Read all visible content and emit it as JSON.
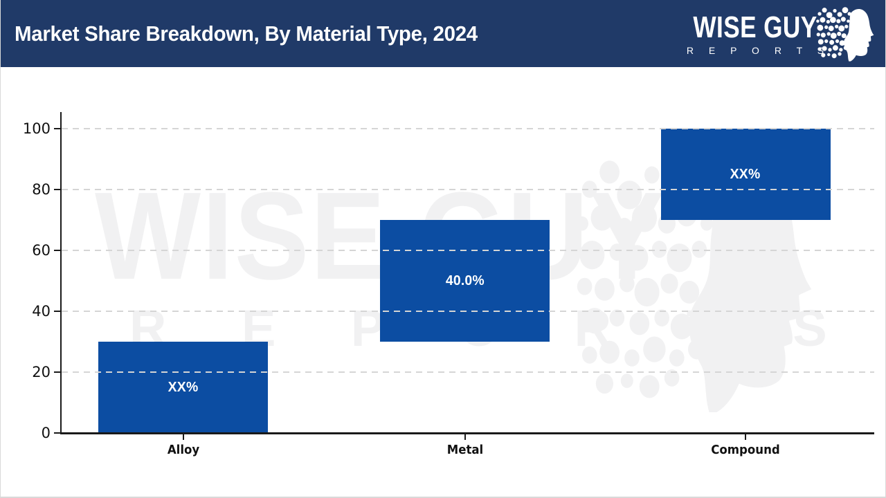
{
  "header": {
    "title": "Market Share Breakdown, By Material Type, 2024"
  },
  "logo": {
    "line1": "WISE GUY",
    "line2": "R E P O R T S"
  },
  "watermark": {
    "line1": "WISE GUY",
    "line2": "R E P O R T S"
  },
  "colors": {
    "header_bg": "#203A68",
    "bar": "#0C4DA2",
    "bar_label": "#FFFFFF",
    "grid": "#D5D5D5",
    "axis": "#1A1A1A",
    "watermark": "#F1F1F2",
    "title_text": "#FFFFFF"
  },
  "chart_data": {
    "type": "bar",
    "subtype": "floating-segment (waterfall-style share breakdown)",
    "title": "Market Share Breakdown, By Material Type, 2024",
    "categories": [
      "Alloy",
      "Metal",
      "Compound"
    ],
    "bars": [
      {
        "category": "Alloy",
        "from": 0,
        "to": 30,
        "label": "XX%"
      },
      {
        "category": "Metal",
        "from": 30,
        "to": 70,
        "label": "40.0%"
      },
      {
        "category": "Compound",
        "from": 70,
        "to": 100,
        "label": "XX%"
      }
    ],
    "xlabel": "",
    "ylabel": "",
    "ylim": [
      0,
      100
    ],
    "yticks": [
      0,
      20,
      40,
      60,
      80,
      100
    ],
    "grid": "horizontal-dashed",
    "gridlines_over_bars": true,
    "legend": "none"
  }
}
